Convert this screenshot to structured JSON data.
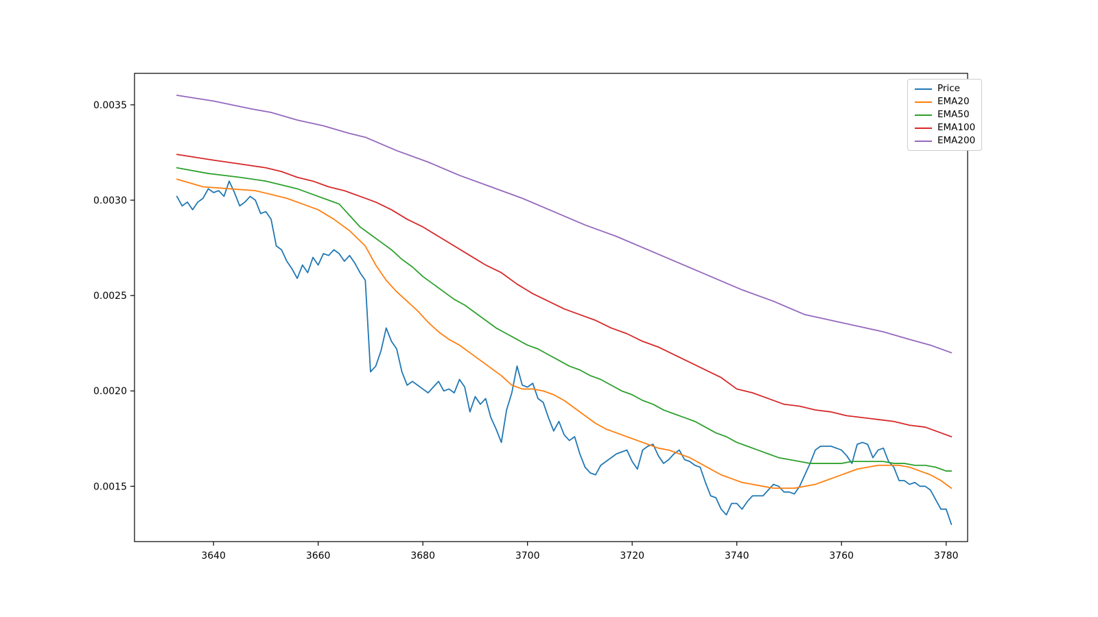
{
  "figure": {
    "background": "#ffffff",
    "spine_color": "#000000",
    "tick_label_color": "#000000"
  },
  "chart_data": {
    "type": "line",
    "title": "",
    "xlabel": "",
    "ylabel": "",
    "grid": false,
    "legend_position": "upper right",
    "x_range": [
      3624.9,
      3784.1
    ],
    "y_range": [
      0.00121,
      0.003665
    ],
    "x_ticks": [
      3640,
      3660,
      3680,
      3700,
      3720,
      3740,
      3760,
      3780
    ],
    "y_ticks": [
      0.0015,
      0.002,
      0.0025,
      0.003,
      0.0035
    ],
    "y_tick_decimals": 4,
    "series": [
      {
        "name": "Price",
        "color": "#1f77b4",
        "x_start": 3633,
        "x_step": 1,
        "values": [
          0.00302,
          0.00297,
          0.00299,
          0.00295,
          0.00299,
          0.00301,
          0.00306,
          0.00304,
          0.00305,
          0.00302,
          0.0031,
          0.00304,
          0.00297,
          0.00299,
          0.00302,
          0.003,
          0.00293,
          0.00294,
          0.0029,
          0.00276,
          0.00274,
          0.00268,
          0.00264,
          0.00259,
          0.00266,
          0.00262,
          0.0027,
          0.00266,
          0.00272,
          0.00271,
          0.00274,
          0.00272,
          0.00268,
          0.00271,
          0.00267,
          0.00262,
          0.00258,
          0.0021,
          0.00213,
          0.00221,
          0.00233,
          0.00226,
          0.00222,
          0.0021,
          0.00203,
          0.00205,
          0.00203,
          0.00201,
          0.00199,
          0.00202,
          0.00205,
          0.002,
          0.00201,
          0.00199,
          0.00206,
          0.00202,
          0.00189,
          0.00197,
          0.00193,
          0.00196,
          0.00186,
          0.0018,
          0.00173,
          0.0019,
          0.00199,
          0.00213,
          0.00203,
          0.00202,
          0.00204,
          0.00196,
          0.00194,
          0.00186,
          0.00179,
          0.00184,
          0.00177,
          0.00174,
          0.00176,
          0.00167,
          0.0016,
          0.00157,
          0.00156,
          0.00161,
          0.00163,
          0.00165,
          0.00167,
          0.00168,
          0.00169,
          0.00163,
          0.00159,
          0.00169,
          0.00171,
          0.00172,
          0.00166,
          0.00162,
          0.00164,
          0.00167,
          0.00169,
          0.00164,
          0.00163,
          0.00161,
          0.0016,
          0.00152,
          0.00145,
          0.00144,
          0.00138,
          0.00135,
          0.00141,
          0.00141,
          0.00138,
          0.00142,
          0.00145,
          0.00145,
          0.00145,
          0.00148,
          0.00151,
          0.0015,
          0.00147,
          0.00147,
          0.00146,
          0.0015,
          0.00156,
          0.00162,
          0.00169,
          0.00171,
          0.00171,
          0.00171,
          0.0017,
          0.00169,
          0.00166,
          0.00162,
          0.00172,
          0.00173,
          0.00172,
          0.00165,
          0.00169,
          0.0017,
          0.00163,
          0.0016,
          0.00153,
          0.00153,
          0.00151,
          0.00152,
          0.0015,
          0.0015,
          0.00148,
          0.00143,
          0.00138,
          0.00138,
          0.0013
        ]
      },
      {
        "name": "EMA20",
        "color": "#ff7f0e",
        "points": [
          [
            3633,
            0.00311
          ],
          [
            3638,
            0.00307
          ],
          [
            3643,
            0.00306
          ],
          [
            3648,
            0.00305
          ],
          [
            3651,
            0.00303
          ],
          [
            3654,
            0.00301
          ],
          [
            3657,
            0.00298
          ],
          [
            3660,
            0.00295
          ],
          [
            3663,
            0.0029
          ],
          [
            3666,
            0.00284
          ],
          [
            3669,
            0.00276
          ],
          [
            3671,
            0.00266
          ],
          [
            3673,
            0.00258
          ],
          [
            3675,
            0.00252
          ],
          [
            3677,
            0.00247
          ],
          [
            3679,
            0.00242
          ],
          [
            3681,
            0.00236
          ],
          [
            3683,
            0.00231
          ],
          [
            3685,
            0.00227
          ],
          [
            3687,
            0.00224
          ],
          [
            3689,
            0.0022
          ],
          [
            3691,
            0.00216
          ],
          [
            3693,
            0.00212
          ],
          [
            3695,
            0.00208
          ],
          [
            3697,
            0.00203
          ],
          [
            3699,
            0.00201
          ],
          [
            3701,
            0.00201
          ],
          [
            3703,
            0.002
          ],
          [
            3705,
            0.00198
          ],
          [
            3707,
            0.00195
          ],
          [
            3709,
            0.00191
          ],
          [
            3711,
            0.00187
          ],
          [
            3713,
            0.00183
          ],
          [
            3715,
            0.0018
          ],
          [
            3717,
            0.00178
          ],
          [
            3719,
            0.00176
          ],
          [
            3721,
            0.00174
          ],
          [
            3723,
            0.00172
          ],
          [
            3725,
            0.0017
          ],
          [
            3727,
            0.00169
          ],
          [
            3729,
            0.00167
          ],
          [
            3731,
            0.00165
          ],
          [
            3733,
            0.00162
          ],
          [
            3735,
            0.00159
          ],
          [
            3737,
            0.00156
          ],
          [
            3739,
            0.00154
          ],
          [
            3741,
            0.00152
          ],
          [
            3743,
            0.00151
          ],
          [
            3745,
            0.0015
          ],
          [
            3747,
            0.00149
          ],
          [
            3749,
            0.00149
          ],
          [
            3751,
            0.00149
          ],
          [
            3753,
            0.0015
          ],
          [
            3755,
            0.00151
          ],
          [
            3757,
            0.00153
          ],
          [
            3759,
            0.00155
          ],
          [
            3761,
            0.00157
          ],
          [
            3763,
            0.00159
          ],
          [
            3765,
            0.0016
          ],
          [
            3767,
            0.00161
          ],
          [
            3769,
            0.00161
          ],
          [
            3771,
            0.00161
          ],
          [
            3773,
            0.0016
          ],
          [
            3775,
            0.00158
          ],
          [
            3777,
            0.00156
          ],
          [
            3779,
            0.00153
          ],
          [
            3781,
            0.00149
          ]
        ]
      },
      {
        "name": "EMA50",
        "color": "#2ca02c",
        "points": [
          [
            3633,
            0.00317
          ],
          [
            3639,
            0.00314
          ],
          [
            3645,
            0.00312
          ],
          [
            3650,
            0.0031
          ],
          [
            3653,
            0.00308
          ],
          [
            3656,
            0.00306
          ],
          [
            3659,
            0.00303
          ],
          [
            3662,
            0.003
          ],
          [
            3664,
            0.00298
          ],
          [
            3666,
            0.00292
          ],
          [
            3668,
            0.00286
          ],
          [
            3670,
            0.00282
          ],
          [
            3672,
            0.00278
          ],
          [
            3674,
            0.00274
          ],
          [
            3676,
            0.00269
          ],
          [
            3678,
            0.00265
          ],
          [
            3680,
            0.0026
          ],
          [
            3682,
            0.00256
          ],
          [
            3684,
            0.00252
          ],
          [
            3686,
            0.00248
          ],
          [
            3688,
            0.00245
          ],
          [
            3690,
            0.00241
          ],
          [
            3692,
            0.00237
          ],
          [
            3694,
            0.00233
          ],
          [
            3696,
            0.0023
          ],
          [
            3698,
            0.00227
          ],
          [
            3700,
            0.00224
          ],
          [
            3702,
            0.00222
          ],
          [
            3704,
            0.00219
          ],
          [
            3706,
            0.00216
          ],
          [
            3708,
            0.00213
          ],
          [
            3710,
            0.00211
          ],
          [
            3712,
            0.00208
          ],
          [
            3714,
            0.00206
          ],
          [
            3716,
            0.00203
          ],
          [
            3718,
            0.002
          ],
          [
            3720,
            0.00198
          ],
          [
            3722,
            0.00195
          ],
          [
            3724,
            0.00193
          ],
          [
            3726,
            0.0019
          ],
          [
            3728,
            0.00188
          ],
          [
            3730,
            0.00186
          ],
          [
            3732,
            0.00184
          ],
          [
            3734,
            0.00181
          ],
          [
            3736,
            0.00178
          ],
          [
            3738,
            0.00176
          ],
          [
            3740,
            0.00173
          ],
          [
            3742,
            0.00171
          ],
          [
            3744,
            0.00169
          ],
          [
            3746,
            0.00167
          ],
          [
            3748,
            0.00165
          ],
          [
            3750,
            0.00164
          ],
          [
            3752,
            0.00163
          ],
          [
            3754,
            0.00162
          ],
          [
            3756,
            0.00162
          ],
          [
            3758,
            0.00162
          ],
          [
            3760,
            0.00162
          ],
          [
            3762,
            0.00163
          ],
          [
            3764,
            0.00163
          ],
          [
            3766,
            0.00163
          ],
          [
            3768,
            0.00163
          ],
          [
            3770,
            0.00162
          ],
          [
            3772,
            0.00162
          ],
          [
            3774,
            0.00161
          ],
          [
            3776,
            0.00161
          ],
          [
            3778,
            0.0016
          ],
          [
            3780,
            0.00158
          ],
          [
            3781,
            0.00158
          ]
        ]
      },
      {
        "name": "EMA100",
        "color": "#d62728",
        "points": [
          [
            3633,
            0.00324
          ],
          [
            3640,
            0.00321
          ],
          [
            3645,
            0.00319
          ],
          [
            3650,
            0.00317
          ],
          [
            3653,
            0.00315
          ],
          [
            3656,
            0.00312
          ],
          [
            3659,
            0.0031
          ],
          [
            3662,
            0.00307
          ],
          [
            3665,
            0.00305
          ],
          [
            3668,
            0.00302
          ],
          [
            3671,
            0.00299
          ],
          [
            3674,
            0.00295
          ],
          [
            3677,
            0.0029
          ],
          [
            3680,
            0.00286
          ],
          [
            3683,
            0.00281
          ],
          [
            3686,
            0.00276
          ],
          [
            3689,
            0.00271
          ],
          [
            3692,
            0.00266
          ],
          [
            3695,
            0.00262
          ],
          [
            3698,
            0.00256
          ],
          [
            3701,
            0.00251
          ],
          [
            3704,
            0.00247
          ],
          [
            3707,
            0.00243
          ],
          [
            3710,
            0.0024
          ],
          [
            3713,
            0.00237
          ],
          [
            3716,
            0.00233
          ],
          [
            3719,
            0.0023
          ],
          [
            3722,
            0.00226
          ],
          [
            3725,
            0.00223
          ],
          [
            3728,
            0.00219
          ],
          [
            3731,
            0.00215
          ],
          [
            3734,
            0.00211
          ],
          [
            3737,
            0.00207
          ],
          [
            3740,
            0.00201
          ],
          [
            3743,
            0.00199
          ],
          [
            3746,
            0.00196
          ],
          [
            3749,
            0.00193
          ],
          [
            3752,
            0.00192
          ],
          [
            3755,
            0.0019
          ],
          [
            3758,
            0.00189
          ],
          [
            3761,
            0.00187
          ],
          [
            3764,
            0.00186
          ],
          [
            3767,
            0.00185
          ],
          [
            3770,
            0.00184
          ],
          [
            3773,
            0.00182
          ],
          [
            3776,
            0.00181
          ],
          [
            3779,
            0.00178
          ],
          [
            3781,
            0.00176
          ]
        ]
      },
      {
        "name": "EMA200",
        "color": "#9467bd",
        "points": [
          [
            3633,
            0.00355
          ],
          [
            3640,
            0.00352
          ],
          [
            3647,
            0.00348
          ],
          [
            3651,
            0.00346
          ],
          [
            3656,
            0.00342
          ],
          [
            3661,
            0.00339
          ],
          [
            3666,
            0.00335
          ],
          [
            3669,
            0.00333
          ],
          [
            3675,
            0.00326
          ],
          [
            3681,
            0.0032
          ],
          [
            3687,
            0.00313
          ],
          [
            3693,
            0.00307
          ],
          [
            3699,
            0.00301
          ],
          [
            3705,
            0.00294
          ],
          [
            3711,
            0.00287
          ],
          [
            3717,
            0.00281
          ],
          [
            3723,
            0.00274
          ],
          [
            3729,
            0.00267
          ],
          [
            3735,
            0.0026
          ],
          [
            3741,
            0.00253
          ],
          [
            3747,
            0.00247
          ],
          [
            3753,
            0.0024
          ],
          [
            3758,
            0.00237
          ],
          [
            3763,
            0.00234
          ],
          [
            3768,
            0.00231
          ],
          [
            3773,
            0.00227
          ],
          [
            3777,
            0.00224
          ],
          [
            3781,
            0.0022
          ]
        ]
      }
    ]
  }
}
